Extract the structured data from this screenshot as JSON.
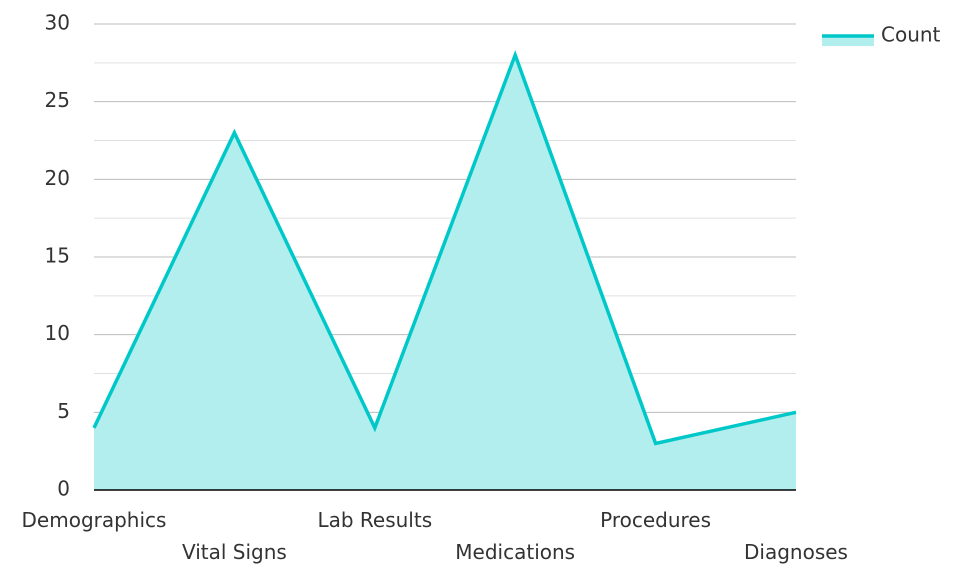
{
  "chart_data": {
    "type": "area",
    "categories": [
      "Demographics",
      "Vital Signs",
      "Lab Results",
      "Medications",
      "Procedures",
      "Diagnoses"
    ],
    "series": [
      {
        "name": "Count",
        "values": [
          4,
          23,
          4,
          28,
          3,
          5
        ]
      }
    ],
    "ylim": [
      0,
      30
    ],
    "yticks": [
      0,
      5,
      10,
      15,
      20,
      25,
      30
    ],
    "grid": true,
    "legend": "top-right",
    "colors": {
      "line": "#00c8c8",
      "fill": "#b2eeee",
      "grid_major": "#bdbdbd",
      "grid_minor": "#e0e0e0",
      "axis": "#000000"
    }
  }
}
